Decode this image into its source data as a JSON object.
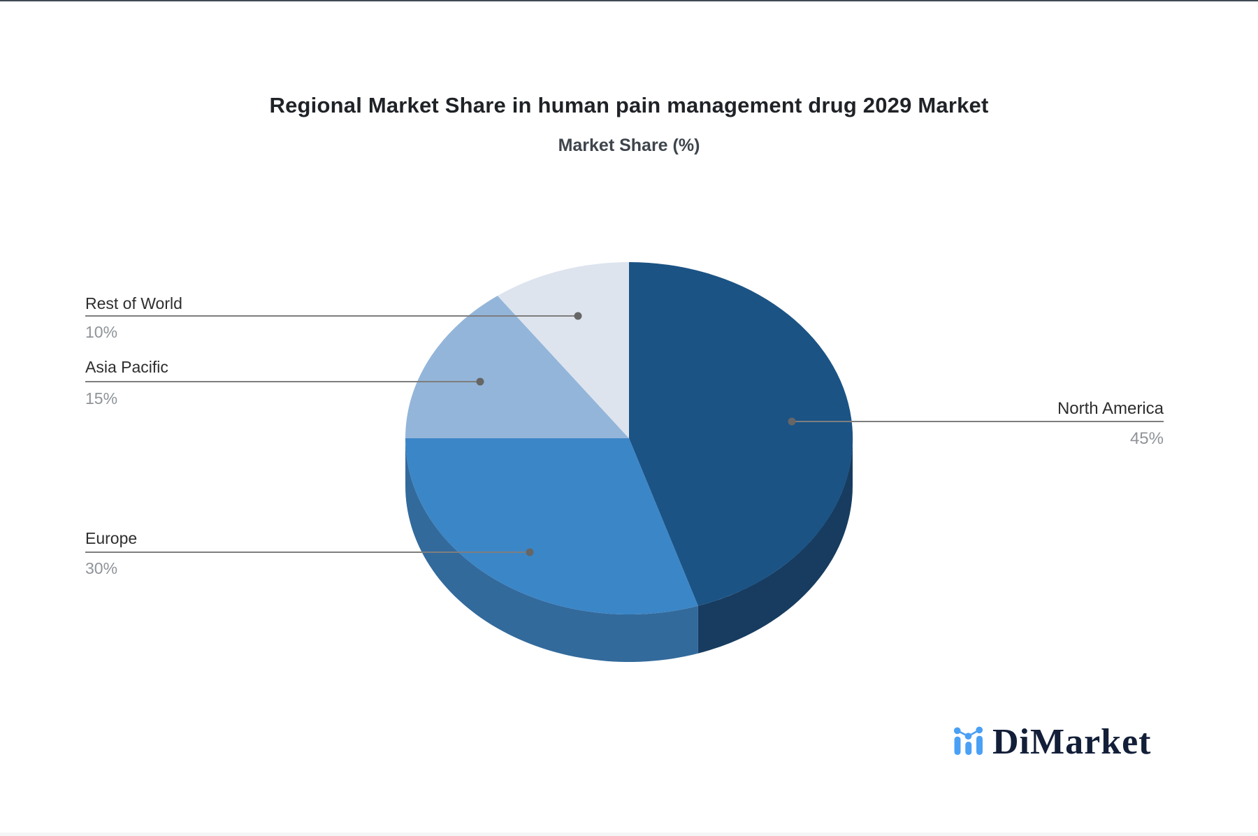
{
  "chart_data": {
    "type": "pie",
    "title": "Regional Market Share in human pain management drug 2029 Market",
    "subtitle": "Market Share (%)",
    "unit": "%",
    "style": "3d",
    "start_angle": "12-oclock",
    "direction": "clockwise",
    "legend_position": "callout-labels",
    "leader_line_color": "#7e7e7e",
    "leader_dot_color": "#666666",
    "slices": [
      {
        "label": "North America",
        "value": 45,
        "color": "#1b5385",
        "side_color": "#173c60"
      },
      {
        "label": "Europe",
        "value": 30,
        "color": "#3b86c7",
        "side_color": "#336a9c"
      },
      {
        "label": "Asia Pacific",
        "value": 15,
        "color": "#93b5d9",
        "side_color": "#7fa3c9"
      },
      {
        "label": "Rest of World",
        "value": 10,
        "color": "#dde4ee",
        "side_color": "#c3cfdf"
      }
    ]
  },
  "brand": {
    "name": "DiMarket",
    "icon": "bar-chart-logo-icon",
    "icon_color": "#4aa0f4",
    "text_color": "#131f38"
  }
}
